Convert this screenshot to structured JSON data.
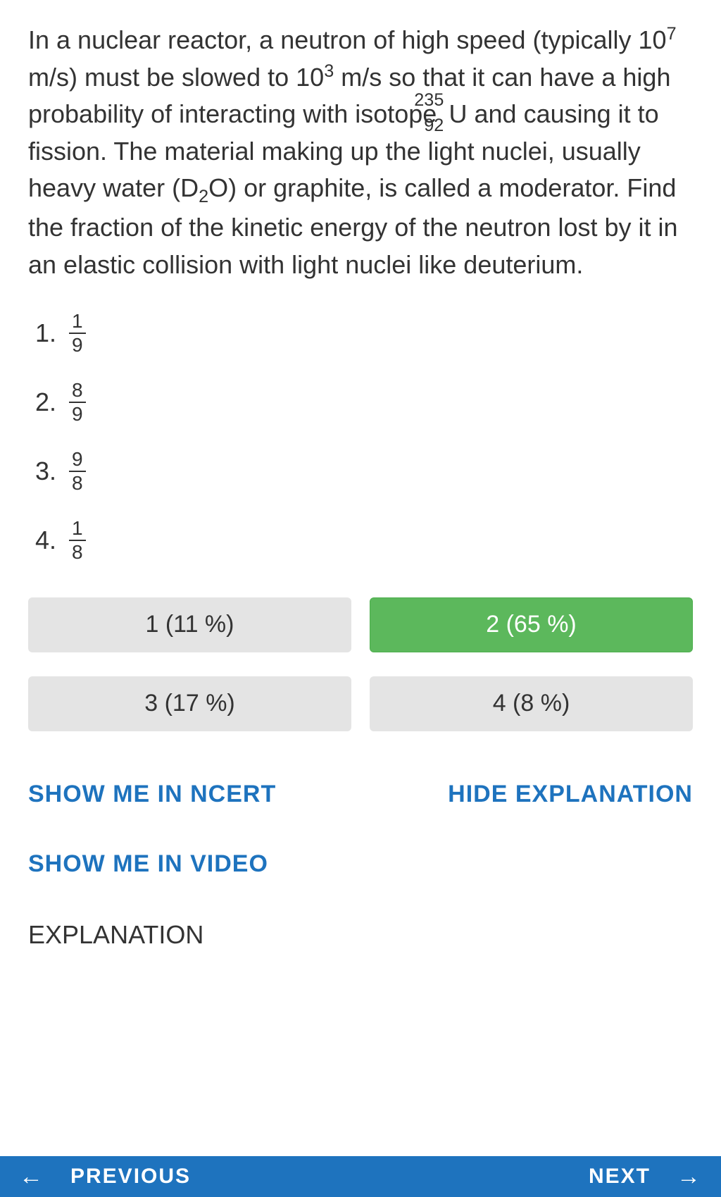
{
  "question": {
    "pre1": "In a nuclear reactor, a neutron of high speed (typically ",
    "speed1_base": "10",
    "speed1_exp": "7",
    "mid1": " m/s) must be slowed to ",
    "speed2_base": "10",
    "speed2_exp": "3",
    "mid2": " m/s so that it can have a high probability of interacting with isotope ",
    "nuclide_mass": "235",
    "nuclide_atomic": "92",
    "nuclide_sym": "U",
    "mid3": " and causing it to fission. The material making up the light nuclei, usually heavy water ",
    "d2o_open": "(D",
    "d2o_sub": "2",
    "d2o_close": "O)",
    "post": " or graphite, is called a moderator. Find the fraction of the kinetic energy of the neutron lost by it in an elastic collision with light nuclei like deuterium."
  },
  "options": {
    "o1_num": "1.",
    "o1_frac_num": "1",
    "o1_frac_den": "9",
    "o2_num": "2.",
    "o2_frac_num": "8",
    "o2_frac_den": "9",
    "o3_num": "3.",
    "o3_frac_num": "9",
    "o3_frac_den": "8",
    "o4_num": "4.",
    "o4_frac_num": "1",
    "o4_frac_den": "8"
  },
  "answers": {
    "a1": "1 (11 %)",
    "a2": "2 (65 %)",
    "a3": "3 (17 %)",
    "a4": "4 (8 %)",
    "correct_index": 2,
    "colors": {
      "default": "#e4e4e4",
      "correct": "#5cb85c"
    }
  },
  "actions": {
    "ncert": "SHOW ME IN NCERT",
    "hide": "HIDE EXPLANATION",
    "video": "SHOW ME IN VIDEO"
  },
  "explanation_heading": "EXPLANATION",
  "nav": {
    "arrow_left": "←",
    "previous": "PREVIOUS",
    "next": "NEXT",
    "arrow_right": "→"
  }
}
